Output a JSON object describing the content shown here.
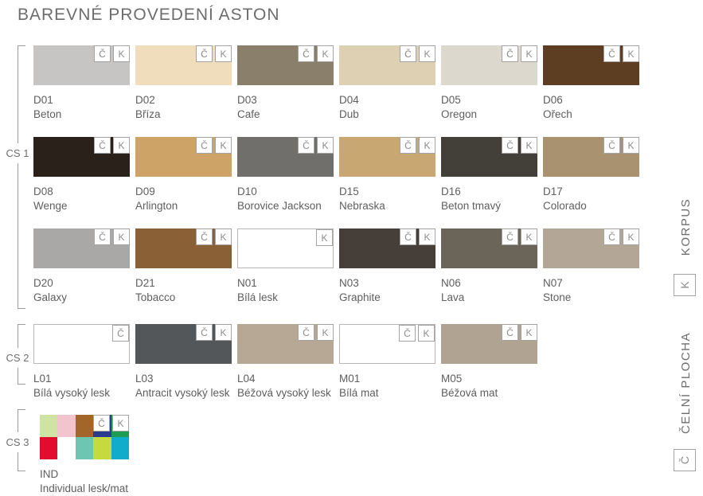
{
  "title": "BAREVNÉ PROVEDENÍ ASTON",
  "legend": {
    "korpus_label": "KORPUS",
    "korpus_badge": "K",
    "celni_label": "ČELNÍ PLOCHA",
    "celni_badge": "Č"
  },
  "groups": [
    {
      "label": "CS 1"
    },
    {
      "label": "CS 2"
    },
    {
      "label": "CS 3"
    }
  ],
  "badge_colors": {
    "background": "#ffffff",
    "border": "#a3a3a3",
    "text": "#8c8c8c"
  },
  "rows": [
    [
      {
        "code": "D01",
        "name": "Beton",
        "color": "#c7c5c3",
        "texture": "concrete",
        "badges": [
          "Č",
          "K"
        ]
      },
      {
        "code": "D02",
        "name": "Bříza",
        "color": "#f0ddbb",
        "texture": "wood-light",
        "badges": [
          "Č",
          "K"
        ]
      },
      {
        "code": "D03",
        "name": "Cafe",
        "color": "#8a7f6b",
        "texture": "wood",
        "badges": [
          "Č",
          "K"
        ]
      },
      {
        "code": "D04",
        "name": "Dub",
        "color": "#ddd0b3",
        "texture": "wood-light",
        "badges": [
          "Č",
          "K"
        ]
      },
      {
        "code": "D05",
        "name": "Oregon",
        "color": "#dcd8cd",
        "texture": "wood-light",
        "badges": [
          "Č",
          "K"
        ]
      },
      {
        "code": "D06",
        "name": "Ořech",
        "color": "#5e3e23",
        "texture": "wood-strong",
        "badges": [
          "Č",
          "K"
        ]
      }
    ],
    [
      {
        "code": "D08",
        "name": "Wenge",
        "color": "#2b211b",
        "texture": "wood",
        "badges": [
          "Č",
          "K"
        ]
      },
      {
        "code": "D09",
        "name": "Arlington",
        "color": "#cda368",
        "texture": "wood",
        "badges": [
          "Č",
          "K"
        ]
      },
      {
        "code": "D10",
        "name": "Borovice Jackson",
        "color": "#716f6b",
        "texture": "wood-strong",
        "badges": [
          "Č",
          "K"
        ]
      },
      {
        "code": "D15",
        "name": "Nebraska",
        "color": "#c9a772",
        "texture": "wood",
        "badges": [
          "Č",
          "K"
        ]
      },
      {
        "code": "D16",
        "name": "Beton tmavý",
        "color": "#433f39",
        "texture": "concrete",
        "badges": [
          "Č",
          "K"
        ]
      },
      {
        "code": "D17",
        "name": "Colorado",
        "color": "#a9926f",
        "texture": "wood",
        "badges": [
          "Č",
          "K"
        ]
      }
    ],
    [
      {
        "code": "D20",
        "name": "Galaxy",
        "color": "#a9a8a6",
        "texture": "concrete",
        "badges": [
          "Č",
          "K"
        ]
      },
      {
        "code": "D21",
        "name": "Tobacco",
        "color": "#8a6137",
        "texture": "wood-strong",
        "badges": [
          "Č",
          "K"
        ]
      },
      {
        "code": "N01",
        "name": "Bílá lesk",
        "color": "#ffffff",
        "texture": "white",
        "badges": [
          "K"
        ]
      },
      {
        "code": "N03",
        "name": "Graphite",
        "color": "#463e39",
        "texture": "flat",
        "badges": [
          "Č",
          "K"
        ]
      },
      {
        "code": "N06",
        "name": "Lava",
        "color": "#6b6459",
        "texture": "flat",
        "badges": [
          "Č",
          "K"
        ]
      },
      {
        "code": "N07",
        "name": "Stone",
        "color": "#b3a696",
        "texture": "flat",
        "badges": [
          "Č",
          "K"
        ]
      }
    ],
    [
      {
        "code": "L01",
        "name": "Bílá vysoký lesk",
        "color": "#ffffff",
        "texture": "white",
        "badges": [
          "Č"
        ]
      },
      {
        "code": "L03",
        "name": "Antracit vysoký lesk",
        "color": "#54575a",
        "texture": "flat",
        "badges": [
          "Č",
          "K"
        ]
      },
      {
        "code": "L04",
        "name": "Béžová vysoký lesk",
        "color": "#b6a894",
        "texture": "flat",
        "badges": [
          "Č",
          "K"
        ]
      },
      {
        "code": "M01",
        "name": "Bílá mat",
        "color": "#ffffff",
        "texture": "white",
        "badges": [
          "Č",
          "K"
        ]
      },
      {
        "code": "M05",
        "name": "Béžová mat",
        "color": "#b1a392",
        "texture": "flat",
        "badges": [
          "Č",
          "K"
        ]
      }
    ],
    [
      {
        "code": "IND",
        "name": "Individual lesk/mat",
        "texture": "multi",
        "badges": [
          "Č",
          "K"
        ],
        "colors": [
          "#cfe3a3",
          "#f2c5ce",
          "#a2662a",
          "#2b3c8e",
          "#1e9d52",
          "#e30b2e",
          "#ffffff",
          "#6cc6b2",
          "#c6d93f",
          "#0faccb"
        ]
      }
    ]
  ]
}
